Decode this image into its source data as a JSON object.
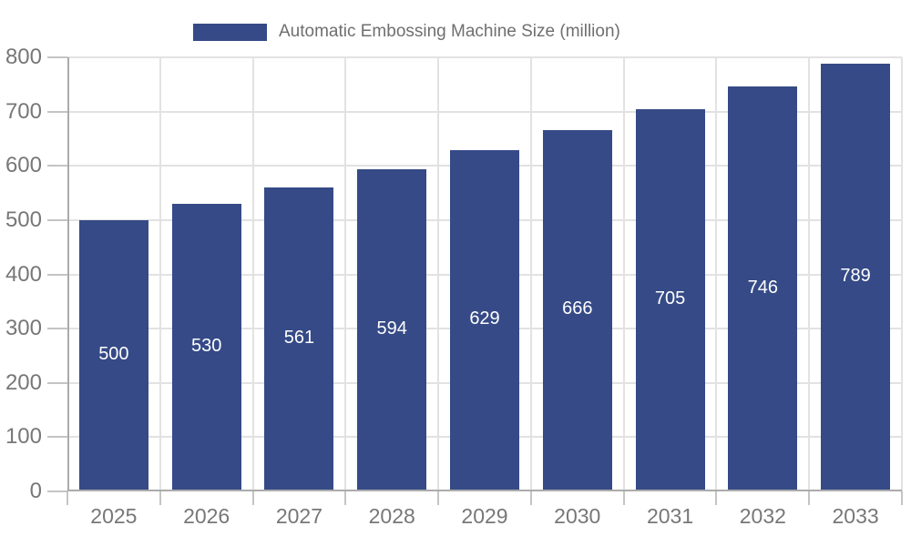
{
  "legend": {
    "label": "Automatic Embossing Machine Size (million)"
  },
  "colors": {
    "bar": "#354a86",
    "value_label": "#ffffff",
    "axis_text": "#777777",
    "legend_text": "#6f6f6f",
    "gridline": "#e2e2e2",
    "axis_line": "#ababab",
    "tick": "#c4c4c4",
    "background": "#ffffff"
  },
  "chart_data": {
    "type": "bar",
    "title": "Automatic Embossing Machine Size (million)",
    "categories": [
      "2025",
      "2026",
      "2027",
      "2028",
      "2029",
      "2030",
      "2031",
      "2032",
      "2033"
    ],
    "values": [
      500,
      530,
      561,
      594,
      629,
      666,
      705,
      746,
      789
    ],
    "series": [
      {
        "name": "Automatic Embossing Machine Size (million)",
        "values": [
          500,
          530,
          561,
          594,
          629,
          666,
          705,
          746,
          789
        ]
      }
    ],
    "xlabel": "",
    "ylabel": "",
    "ylim": [
      0,
      800
    ],
    "yticks": [
      0,
      100,
      200,
      300,
      400,
      500,
      600,
      700,
      800
    ],
    "grid": true,
    "bar_labels": true,
    "legend_position": "top-center"
  }
}
